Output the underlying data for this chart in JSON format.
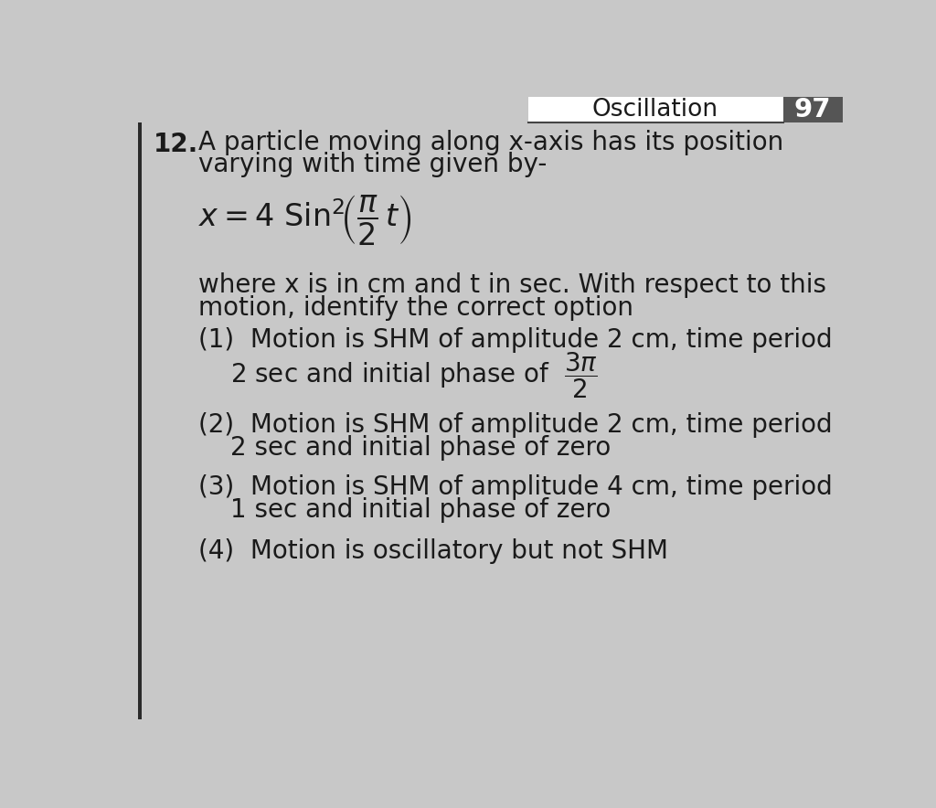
{
  "background_color": "#c8c8c8",
  "header_bg": "#c8c8c8",
  "header_text": "Oscillation",
  "header_number": "97",
  "number_box_color": "#808080",
  "number_text_color": "#ffffff",
  "text_color": "#1a1a1a",
  "left_bar_color": "#2a2a2a",
  "question_number": "12.",
  "question_line1": "A particle moving along x-axis has its position",
  "question_line2": "varying with time given by-",
  "context_line1": "where x is in cm and t in sec. With respect to this",
  "context_line2": "motion, identify the correct option",
  "option1_line1": "(1)  Motion is SHM of amplitude 2 cm, time period",
  "option1_line2": "2 sec and initial phase of",
  "option2_line1": "(2)  Motion is SHM of amplitude 2 cm, time period",
  "option2_line2": "2 sec and initial phase of zero",
  "option3_line1": "(3)  Motion is SHM of amplitude 4 cm, time period",
  "option3_line2": "1 sec and initial phase of zero",
  "option4_line1": "(4)  Motion is oscillatory but not SHM",
  "fs_header": 19,
  "fs_question": 20,
  "fs_formula": 20,
  "fs_options": 20,
  "fs_context": 20
}
